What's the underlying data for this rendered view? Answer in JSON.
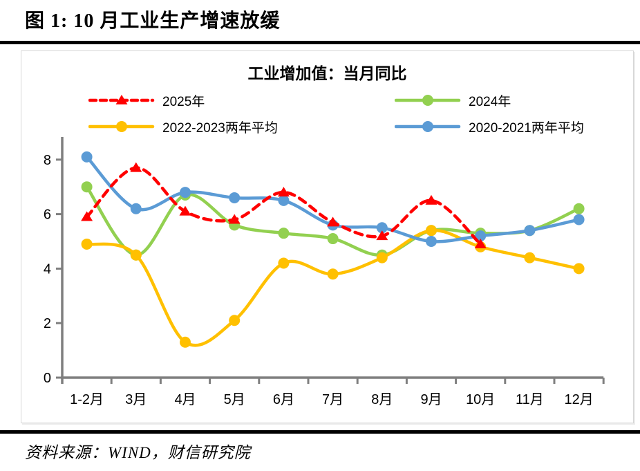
{
  "page": {
    "figure_title": "图 1:  10 月工业生产增速放缓",
    "source_note": "资料来源：WIND，财信研究院"
  },
  "chart_data": {
    "type": "line",
    "title": "工业增加值：当月同比",
    "categories": [
      "1-2月",
      "3月",
      "4月",
      "5月",
      "6月",
      "7月",
      "8月",
      "9月",
      "10月",
      "11月",
      "12月"
    ],
    "y_ticks": [
      0,
      2,
      4,
      6,
      8
    ],
    "ylim": [
      0,
      8.8
    ],
    "grid": false,
    "legend_position": "top",
    "axis_color": "#7F7F7F",
    "text_color": "#000000",
    "series": [
      {
        "name": "2025年",
        "color": "#FF0000",
        "style": "dashed",
        "marker": "triangle",
        "values": [
          5.9,
          7.7,
          6.1,
          5.8,
          6.8,
          5.7,
          5.2,
          6.5,
          4.9
        ]
      },
      {
        "name": "2024年",
        "color": "#92D050",
        "style": "solid",
        "marker": "circle",
        "values": [
          7.0,
          4.5,
          6.7,
          5.6,
          5.3,
          5.1,
          4.5,
          5.4,
          5.3,
          5.4,
          6.2
        ]
      },
      {
        "name": "2022-2023两年平均",
        "color": "#FFC000",
        "style": "solid",
        "marker": "circle",
        "values": [
          4.9,
          4.5,
          1.3,
          2.1,
          4.2,
          3.8,
          4.4,
          5.4,
          4.8,
          4.4,
          4.0
        ]
      },
      {
        "name": "2020-2021两年平均",
        "color": "#5B9BD5",
        "style": "solid",
        "marker": "circle",
        "values": [
          8.1,
          6.2,
          6.8,
          6.6,
          6.5,
          5.6,
          5.5,
          5.0,
          5.2,
          5.4,
          5.8
        ]
      }
    ]
  }
}
